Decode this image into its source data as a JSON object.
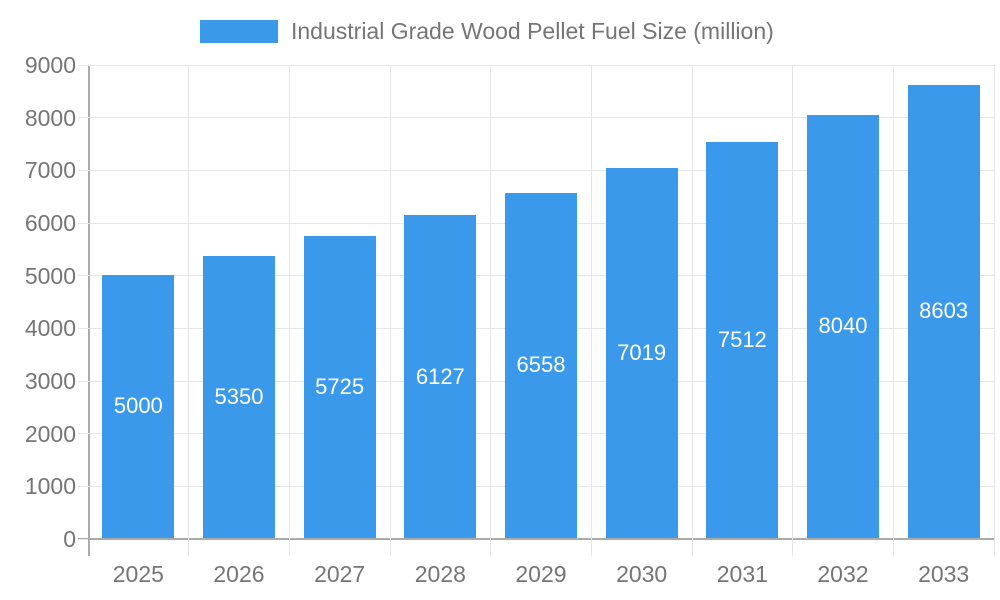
{
  "legend": {
    "label": "Industrial Grade Wood Pellet Fuel Size (million)"
  },
  "colors": {
    "bar": "#3b99ec",
    "axis_text": "#757575",
    "grid_line": "#e6e6e6",
    "axis_line": "#aaaaaa",
    "value_label": "#ffffff",
    "background": "#ffffff"
  },
  "chart_data": {
    "type": "bar",
    "title": "",
    "xlabel": "",
    "ylabel": "",
    "categories": [
      "2025",
      "2026",
      "2027",
      "2028",
      "2029",
      "2030",
      "2031",
      "2032",
      "2033"
    ],
    "series": [
      {
        "name": "Industrial Grade Wood Pellet Fuel Size (million)",
        "values": [
          5000,
          5350,
          5725,
          6127,
          6558,
          7019,
          7512,
          8040,
          8603
        ]
      }
    ],
    "value_labels_shown": true,
    "value_label_position": "inside-center",
    "ylim": [
      0,
      9000
    ],
    "ytick_interval": 1000,
    "yticks": [
      0,
      1000,
      2000,
      3000,
      4000,
      5000,
      6000,
      7000,
      8000,
      9000
    ],
    "grid": true,
    "legend_position": "top",
    "bar_color": "#3b99ec"
  }
}
